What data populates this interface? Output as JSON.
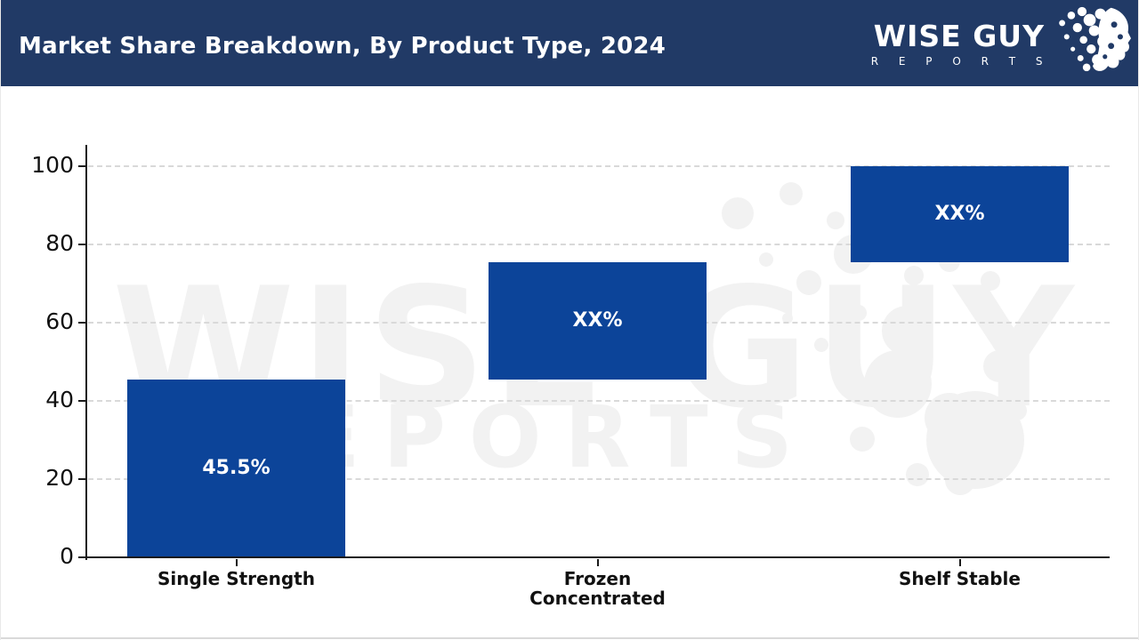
{
  "header": {
    "title": "Market Share Breakdown, By Product Type, 2024",
    "logo_line1": "WISE GUY",
    "logo_line2": "R E P O R T S"
  },
  "watermark": {
    "line1": "WISE GUY",
    "line2": "REPORTS"
  },
  "chart_data": {
    "type": "bar",
    "variant": "waterfall",
    "title": "Market Share Breakdown, By Product Type, 2024",
    "categories": [
      "Single Strength",
      "Frozen\nConcentrated",
      "Shelf Stable"
    ],
    "bars": [
      {
        "category": "Single Strength",
        "start": 0,
        "end": 45.5,
        "label": "45.5%"
      },
      {
        "category": "Frozen Concentrated",
        "start": 45.5,
        "end": 75.5,
        "label": "XX%"
      },
      {
        "category": "Shelf Stable",
        "start": 75.5,
        "end": 100,
        "label": "XX%"
      }
    ],
    "values": [
      45.5,
      30,
      24.5
    ],
    "ylim": [
      0,
      100
    ],
    "yticks": [
      0,
      20,
      40,
      60,
      80,
      100
    ],
    "xlabel": "",
    "ylabel": "",
    "legend": "none",
    "grid": "horizontal-dashed"
  },
  "colors": {
    "header_bg": "#213a66",
    "bar": "#0c4499",
    "gridline": "#d9d9d9",
    "axis": "#1a1a1a",
    "watermark": "#f2f2f2"
  }
}
